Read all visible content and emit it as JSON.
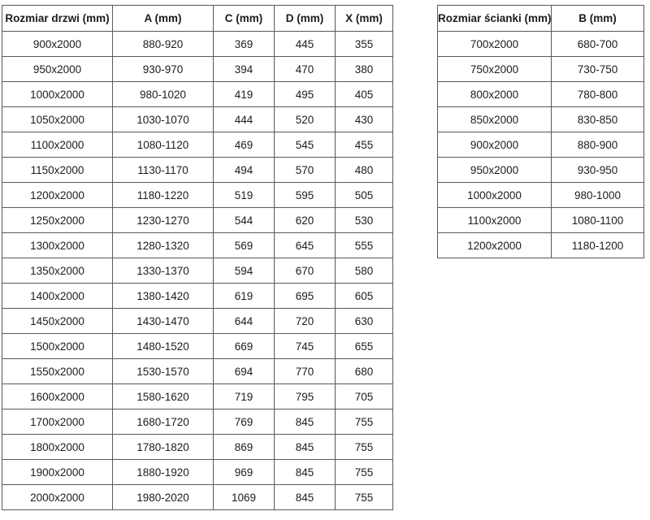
{
  "left_table": {
    "name": "door-sizes-table",
    "headers": [
      "Rozmiar drzwi (mm)",
      "A (mm)",
      "C (mm)",
      "D (mm)",
      "X (mm)"
    ],
    "rows": [
      [
        "900x2000",
        "880-920",
        "369",
        "445",
        "355"
      ],
      [
        "950x2000",
        "930-970",
        "394",
        "470",
        "380"
      ],
      [
        "1000x2000",
        "980-1020",
        "419",
        "495",
        "405"
      ],
      [
        "1050x2000",
        "1030-1070",
        "444",
        "520",
        "430"
      ],
      [
        "1100x2000",
        "1080-1120",
        "469",
        "545",
        "455"
      ],
      [
        "1150x2000",
        "1130-1170",
        "494",
        "570",
        "480"
      ],
      [
        "1200x2000",
        "1180-1220",
        "519",
        "595",
        "505"
      ],
      [
        "1250x2000",
        "1230-1270",
        "544",
        "620",
        "530"
      ],
      [
        "1300x2000",
        "1280-1320",
        "569",
        "645",
        "555"
      ],
      [
        "1350x2000",
        "1330-1370",
        "594",
        "670",
        "580"
      ],
      [
        "1400x2000",
        "1380-1420",
        "619",
        "695",
        "605"
      ],
      [
        "1450x2000",
        "1430-1470",
        "644",
        "720",
        "630"
      ],
      [
        "1500x2000",
        "1480-1520",
        "669",
        "745",
        "655"
      ],
      [
        "1550x2000",
        "1530-1570",
        "694",
        "770",
        "680"
      ],
      [
        "1600x2000",
        "1580-1620",
        "719",
        "795",
        "705"
      ],
      [
        "1700x2000",
        "1680-1720",
        "769",
        "845",
        "755"
      ],
      [
        "1800x2000",
        "1780-1820",
        "869",
        "845",
        "755"
      ],
      [
        "1900x2000",
        "1880-1920",
        "969",
        "845",
        "755"
      ],
      [
        "2000x2000",
        "1980-2020",
        "1069",
        "845",
        "755"
      ]
    ]
  },
  "right_table": {
    "name": "wall-sizes-table",
    "headers": [
      "Rozmiar ścianki (mm)",
      "B (mm)"
    ],
    "rows": [
      [
        "700x2000",
        "680-700"
      ],
      [
        "750x2000",
        "730-750"
      ],
      [
        "800x2000",
        "780-800"
      ],
      [
        "850x2000",
        "830-850"
      ],
      [
        "900x2000",
        "880-900"
      ],
      [
        "950x2000",
        "930-950"
      ],
      [
        "1000x2000",
        "980-1000"
      ],
      [
        "1100x2000",
        "1080-1100"
      ],
      [
        "1200x2000",
        "1180-1200"
      ]
    ]
  },
  "colors": {
    "border": "#595959",
    "text": "#1c1c1c",
    "background": "#ffffff"
  }
}
